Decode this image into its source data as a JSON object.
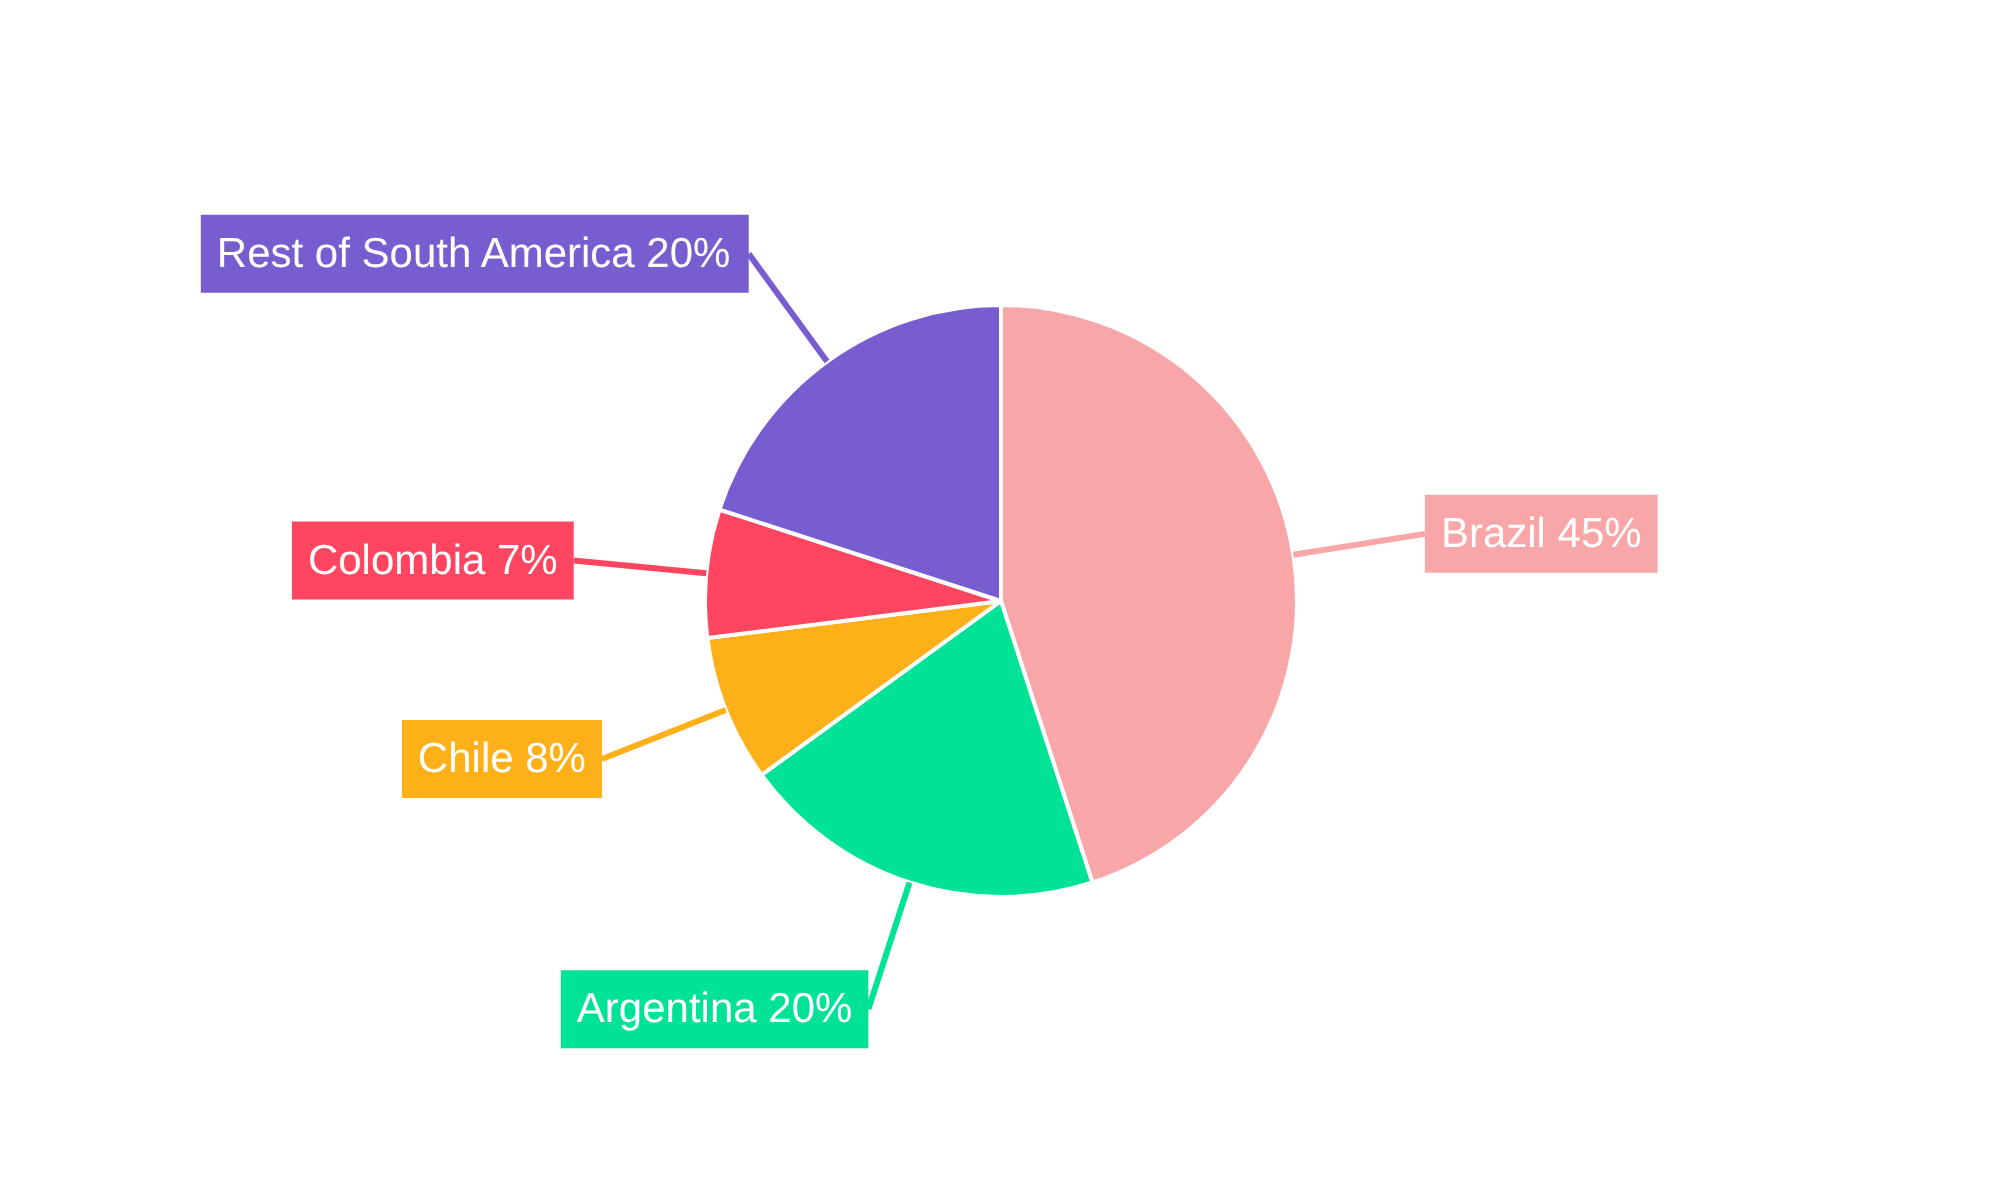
{
  "chart_data": {
    "type": "pie",
    "categories": [
      "Brazil",
      "Argentina",
      "Chile",
      "Colombia",
      "Rest of South America"
    ],
    "values": [
      45,
      20,
      8,
      7,
      20
    ],
    "value_labels": [
      "45%",
      "20%",
      "8%",
      "7%",
      "20%"
    ],
    "colors": [
      "#f9a6a8",
      "#00e396",
      "#feb019",
      "#ff4560",
      "#775dd0"
    ]
  }
}
